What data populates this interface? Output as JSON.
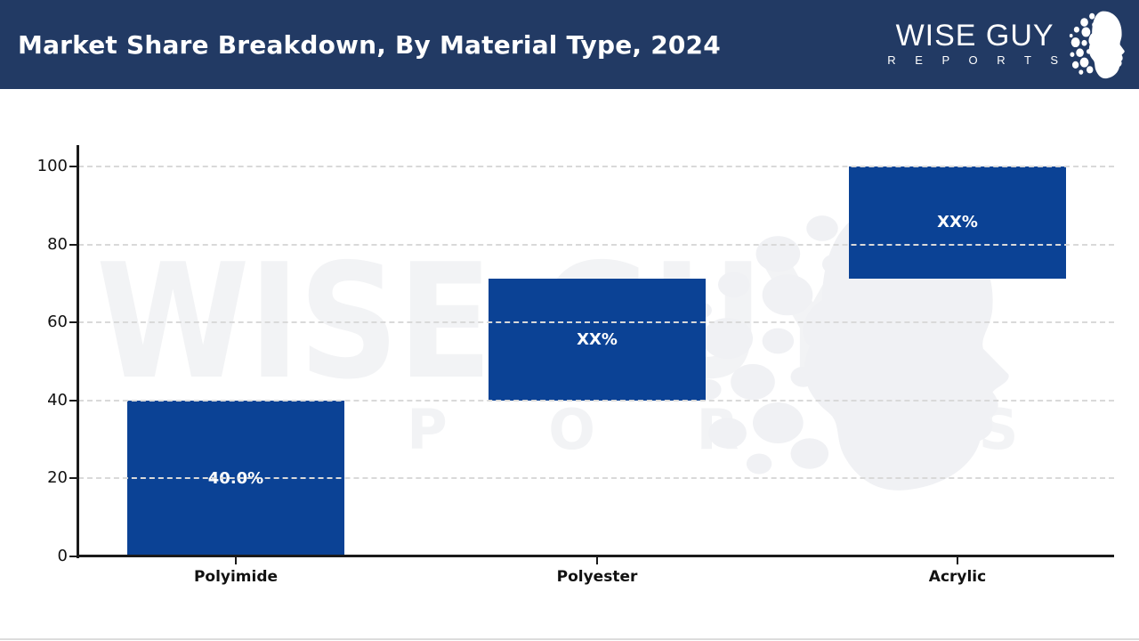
{
  "header": {
    "title": "Market Share Breakdown, By Material Type, 2024",
    "logo": {
      "line1": "WISE GUY",
      "line2": "R E P O R T S"
    }
  },
  "watermark": {
    "line1": "WISE GUY",
    "line2": "R E P O R T S"
  },
  "colors": {
    "header_bg": "#223a64",
    "bar": "#0b4295",
    "bar_label": "#ffffff",
    "axis": "#1a1a1a",
    "grid": "#d9d9d9",
    "tick_label": "#111111",
    "watermark": "#f2f3f5"
  },
  "chart_data": {
    "type": "bar",
    "variant": "stacked-range-columns",
    "title": "Market Share Breakdown, By Material Type, 2024",
    "categories": [
      "Polyimide",
      "Polyester",
      "Acrylic"
    ],
    "segments": [
      {
        "category": "Polyimide",
        "start": 0,
        "end": 40,
        "label": "40.0%"
      },
      {
        "category": "Polyester",
        "start": 40,
        "end": 71.3,
        "label": "XX%"
      },
      {
        "category": "Acrylic",
        "start": 71.3,
        "end": 100,
        "label": "XX%"
      }
    ],
    "yticks": [
      0,
      20,
      40,
      60,
      80,
      100
    ],
    "ylim": [
      0,
      105
    ],
    "xlabel": "",
    "ylabel": "",
    "grid": "dashed-horizontal",
    "legend": "none"
  }
}
